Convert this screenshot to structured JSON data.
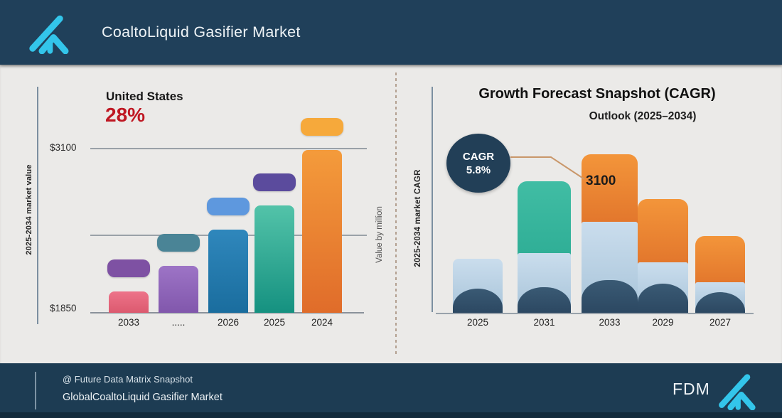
{
  "header": {
    "title": "CoaltoLiquid Gasifier Market",
    "logo": "fdm-arrow-logo"
  },
  "footer": {
    "line1": "@ Future Data Matrix Snapshot",
    "line2": "GlobalCoaltoLiquid Gasifier Market",
    "brand": "FDM"
  },
  "colors": {
    "header_bg": "#20405a",
    "footer_bg": "#1d3c53",
    "card_bg": "#ebeae8",
    "accent_cyan": "#33c5ea",
    "highlight_red": "#bf1722",
    "badge_bg": "#223f57",
    "connector": "#c9976a"
  },
  "chart_data": [
    {
      "type": "bar",
      "title": "United States",
      "highlight": "28%",
      "ylabel": "2025-2034 market value",
      "ylabel_right": "Value by million",
      "ylim": [
        1850,
        3100
      ],
      "yticks": [
        {
          "value": 3100,
          "label": "$3100"
        },
        {
          "value": 2440,
          "label": ""
        }
      ],
      "baseline_label": "$1850",
      "categories": [
        "2033",
        ".....",
        "2026",
        "2025",
        "2024"
      ],
      "values": [
        2010,
        2205,
        2480,
        2665,
        3085
      ],
      "bar_colors": [
        [
          "#ed7389",
          "#dc5a6f"
        ],
        [
          "#9d74c6",
          "#8157ac"
        ],
        [
          "#2f87bc",
          "#1a6d9e"
        ],
        [
          "#53c3a9",
          "#159180"
        ],
        [
          "#f49b3b",
          "#e06c2a"
        ]
      ],
      "cap_colors": [
        "#7e51a3",
        "#4a8496",
        "#5e98de",
        "#5b4b9d",
        "#f6a93b"
      ],
      "grid": true,
      "legend": "none"
    },
    {
      "type": "stacked-bar",
      "title": "Growth Forecast Snapshot (CAGR)",
      "subtitle": "Outlook (2025–2034)",
      "ylabel": "2025-2034 market CAGR",
      "badge": {
        "label": "CAGR",
        "value": "5.8%"
      },
      "annotation": {
        "text": "3100",
        "bar": "2033"
      },
      "categories": [
        "2025",
        "2031",
        "2033",
        "2029",
        "2027"
      ],
      "series": [
        {
          "name": "base",
          "color": [
            "#3a5a74",
            "#2c4862"
          ],
          "values": [
            34,
            36,
            46,
            41,
            29
          ]
        },
        {
          "name": "mid",
          "color": [
            "#cadded",
            "#a8c4d9"
          ],
          "values": [
            42,
            48,
            82,
            30,
            14
          ]
        },
        {
          "name": "top",
          "palette": [
            null,
            "teal",
            "orange",
            "orange",
            "orange"
          ],
          "values": [
            0,
            101,
            95,
            89,
            65
          ]
        }
      ],
      "top_colors": {
        "teal": [
          "#41bda4",
          "#2fae96"
        ],
        "orange": [
          "#f3953a",
          "#e2762c"
        ]
      },
      "value_units": "relative (no numeric axis shown)",
      "legend": "none"
    }
  ]
}
